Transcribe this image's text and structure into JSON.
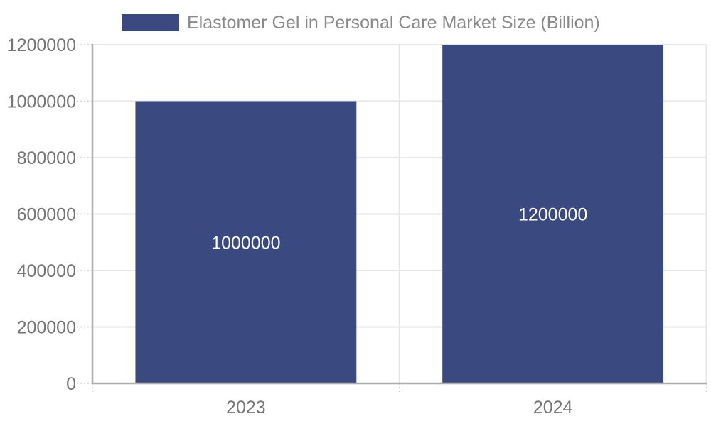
{
  "legend": {
    "label": "Elastomer Gel in Personal Care Market Size (Billion)"
  },
  "chart_data": {
    "type": "bar",
    "title": "Elastomer Gel in Personal Care Market Size (Billion)",
    "xlabel": "",
    "ylabel": "",
    "categories": [
      "2023",
      "2024"
    ],
    "series": [
      {
        "name": "Elastomer Gel in Personal Care Market Size (Billion)",
        "values": [
          1000000,
          1200000
        ]
      }
    ],
    "bar_labels": [
      "1000000",
      "1200000"
    ],
    "ylim": [
      0,
      1200000
    ],
    "ytick_step": 200000,
    "ytick_labels": [
      "0",
      "200000",
      "400000",
      "600000",
      "800000",
      "1000000",
      "1200000"
    ],
    "grid": true,
    "legend_position": "top-left",
    "colors": {
      "bar": "#3A4A80",
      "grid": "#E6E6E6",
      "axis": "#ADADAD",
      "tick": "#CFCFCF",
      "tick_label": "#757575",
      "legend_text": "#8A8A8A",
      "bar_label": "#FFFFFF",
      "background": "#FFFFFF"
    }
  }
}
